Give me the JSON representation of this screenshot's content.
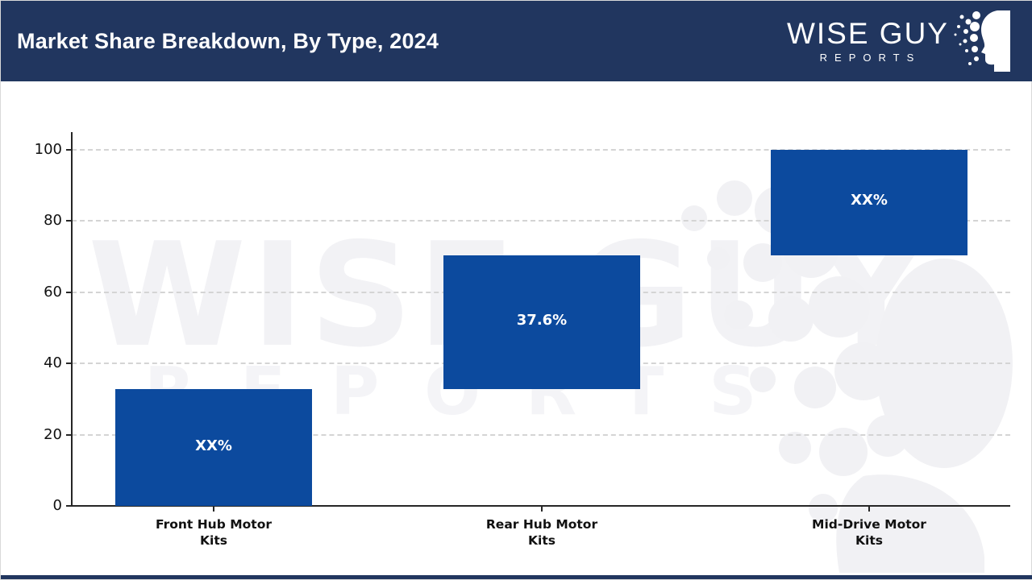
{
  "header": {
    "title": "Market Share Breakdown, By Type, 2024",
    "logo_line1": "WISE GUY",
    "logo_line2": "REPORTS"
  },
  "watermark": {
    "line1": "WISE GUY",
    "line2": "REPORTS"
  },
  "chart_data": {
    "type": "bar",
    "subtype": "waterfall-segment",
    "title": "Market Share Breakdown, By Type, 2024",
    "categories": [
      "Front Hub Motor\nKits",
      "Rear Hub Motor\nKits",
      "Mid-Drive Motor\nKits"
    ],
    "bars": [
      {
        "category": "Front Hub Motor Kits",
        "start": 0,
        "end": 32.8,
        "label": "XX%"
      },
      {
        "category": "Rear Hub Motor Kits",
        "start": 32.8,
        "end": 70.4,
        "label": "37.6%"
      },
      {
        "category": "Mid-Drive Motor Kits",
        "start": 70.4,
        "end": 100,
        "label": "XX%"
      }
    ],
    "yticks": [
      0,
      20,
      40,
      60,
      80,
      100
    ],
    "ylim": [
      0,
      100
    ],
    "xlabel": "",
    "ylabel": "",
    "grid": "horizontal-dashed",
    "legend": null
  },
  "colors": {
    "header_bg": "#21365f",
    "bar": "#0c4a9e",
    "axis": "#262626",
    "grid": "#d4d4d4",
    "bar_label": "#ffffff",
    "watermark": "#f2f2f5"
  }
}
